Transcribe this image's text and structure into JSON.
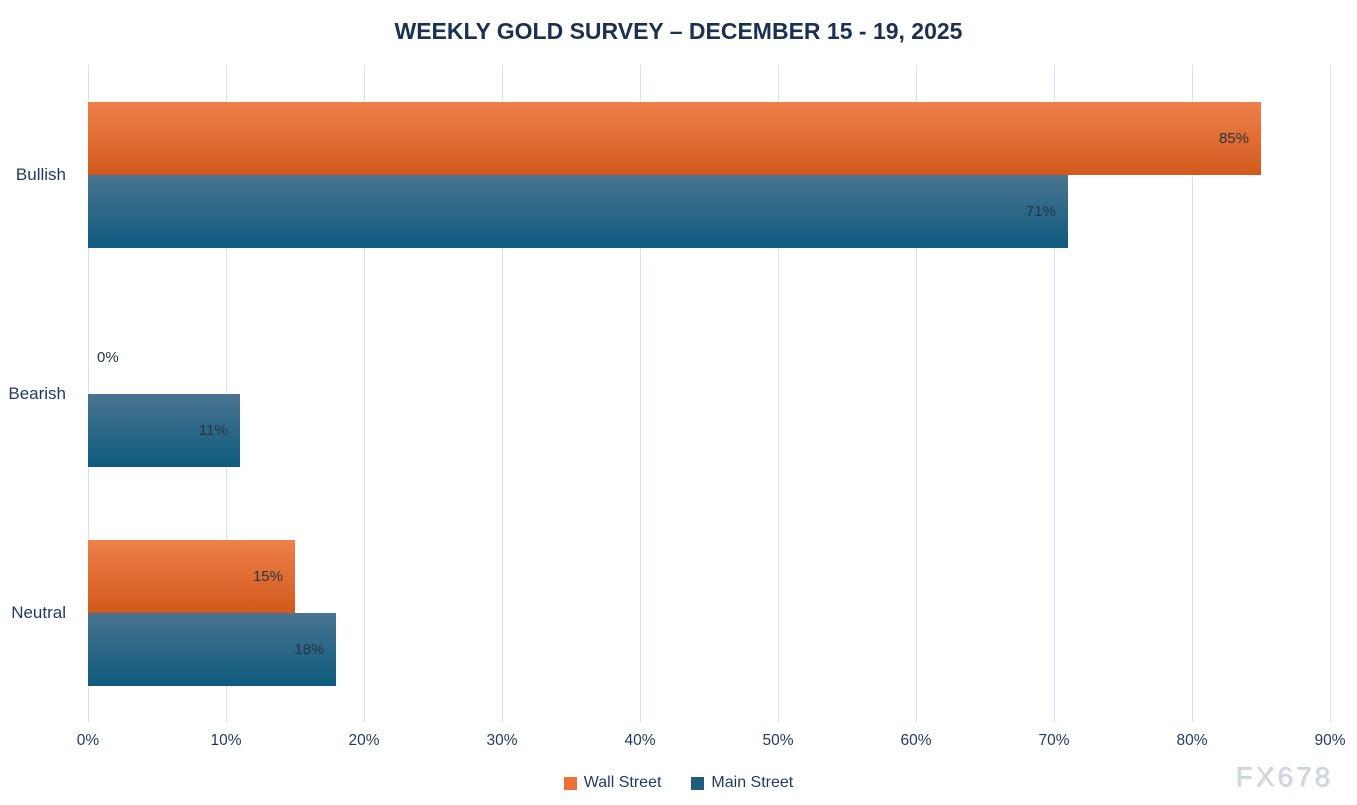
{
  "title": "WEEKLY GOLD SURVEY – DECEMBER 15 - 19, 2025",
  "watermark": "FX678",
  "chart_data": {
    "type": "bar",
    "orientation": "horizontal",
    "title": "WEEKLY GOLD SURVEY – DECEMBER 15 - 19, 2025",
    "categories": [
      "Bullish",
      "Bearish",
      "Neutral"
    ],
    "series": [
      {
        "name": "Wall Street",
        "values": [
          85,
          0,
          15
        ],
        "labels": [
          "85%",
          "0%",
          "15%"
        ],
        "color_top": "#ee8049",
        "color_bottom": "#d2591d",
        "legend_color": "#eb7138"
      },
      {
        "name": "Main Street",
        "values": [
          71,
          11,
          18
        ],
        "labels": [
          "71%",
          "11%",
          "18%"
        ],
        "color_top": "#4a7490",
        "color_bottom": "#0e5b7e",
        "legend_color": "#1f5d7e"
      }
    ],
    "xlabel": "",
    "ylabel": "",
    "xlim": [
      0,
      90
    ],
    "x_ticks": [
      "0%",
      "10%",
      "20%",
      "30%",
      "40%",
      "50%",
      "60%",
      "70%",
      "80%",
      "90%"
    ],
    "grid": true,
    "legend_position": "bottom",
    "colors": {
      "background": "#ffffff",
      "gridline": "#d4e2f0",
      "title_text": "#1b3152",
      "axis_text": "#1f3a5c",
      "category_text": "#1f3a5c",
      "data_label_text": "#253544",
      "watermark_text": "#c7d7e7"
    }
  }
}
